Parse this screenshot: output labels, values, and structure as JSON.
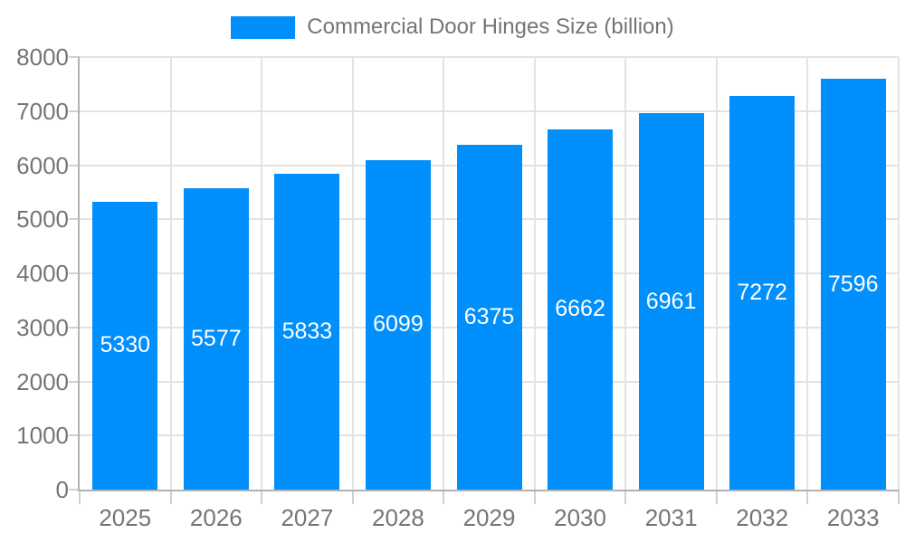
{
  "chart_data": {
    "type": "bar",
    "title": "Commercial Door Hinges Size (billion)",
    "categories": [
      "2025",
      "2026",
      "2027",
      "2028",
      "2029",
      "2030",
      "2031",
      "2032",
      "2033"
    ],
    "values": [
      5330,
      5577,
      5833,
      6099,
      6375,
      6662,
      6961,
      7272,
      7596
    ],
    "series": [
      {
        "name": "Commercial Door Hinges Size (billion)",
        "values": [
          5330,
          5577,
          5833,
          6099,
          6375,
          6662,
          6961,
          7272,
          7596
        ]
      }
    ],
    "xlabel": "",
    "ylabel": "",
    "ylim": [
      0,
      8000
    ],
    "ytick_step": 1000,
    "yticks": [
      0,
      1000,
      2000,
      3000,
      4000,
      5000,
      6000,
      7000,
      8000
    ],
    "grid": true,
    "legend_position": "top",
    "value_labels": "inside-center",
    "colors": {
      "bar": "#008FFB",
      "bar_label": "#ffffff",
      "axis_text": "#757575",
      "gridline": "#e3e3e3",
      "axis_line": "#b3b3b3",
      "tick": "#d0d0d0",
      "background": "#ffffff"
    }
  }
}
